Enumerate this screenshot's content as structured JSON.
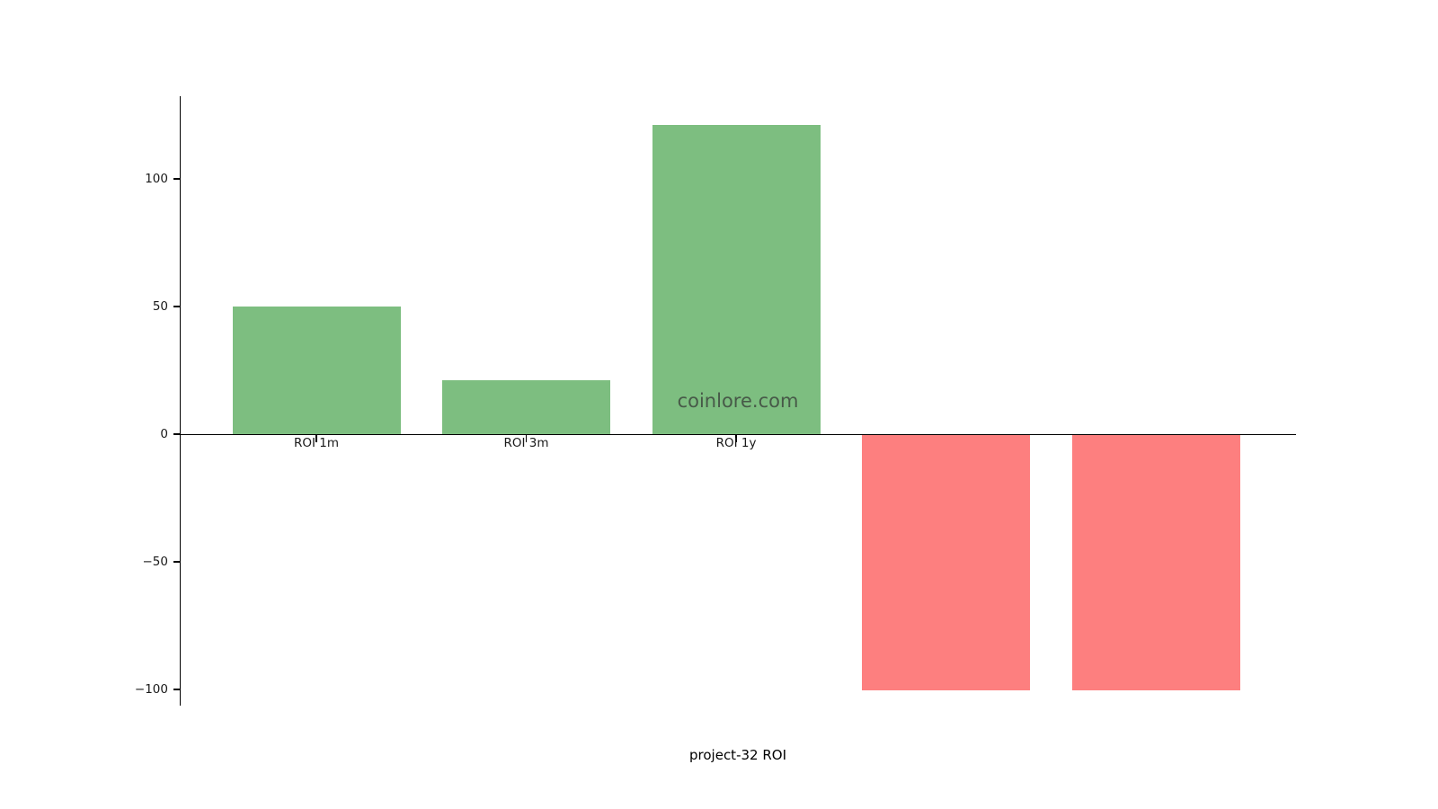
{
  "watermark": {
    "text": "coinlore.com"
  },
  "chart_data": {
    "type": "bar",
    "title": "project-32 ROI",
    "categories": [
      "ROI 1m",
      "ROI 3m",
      "ROI 1y",
      "",
      ""
    ],
    "values": [
      50,
      21,
      121,
      -100,
      -100
    ],
    "xlabel": "",
    "ylabel": "",
    "yticks": [
      100,
      50,
      0,
      -50,
      -100
    ],
    "ytick_labels": [
      "100",
      "50",
      "0",
      "−50",
      "−100"
    ],
    "ylim": [
      -106,
      132
    ],
    "grid": false,
    "legend": "none",
    "positive_color": "#7dbe80",
    "negative_color": "#fd7f7f",
    "axis_color": "#000000",
    "background_color": "#ffffff",
    "watermark_text": "coinlore.com"
  }
}
